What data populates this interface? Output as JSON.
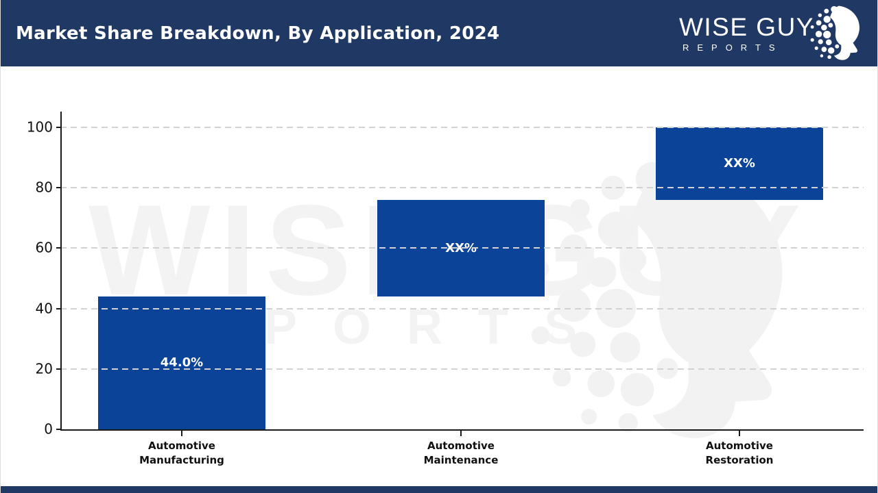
{
  "header": {
    "title": "Market Share Breakdown, By Application, 2024",
    "logo": {
      "brand_line1": "WISE GUY",
      "brand_line2": "REPORTS"
    }
  },
  "watermark": {
    "text_line1": "WISE GUY",
    "text_line2": "REPORTS"
  },
  "chart_data": {
    "type": "bar",
    "subtype": "stepped-cumulative-segments",
    "title": "Market Share Breakdown, By Application, 2024",
    "categories": [
      "Automotive\nManufacturing",
      "Automotive\nMaintenance",
      "Automotive\nRestoration"
    ],
    "starts": [
      0,
      44,
      76
    ],
    "values": [
      44,
      32,
      24
    ],
    "bar_labels": [
      "44.0%",
      "XX%",
      "XX%"
    ],
    "yticks": [
      0,
      20,
      40,
      60,
      80,
      100
    ],
    "ylim": [
      0,
      100
    ],
    "grid": "dashed-horizontal",
    "legend": "none",
    "bar_color": "#0a4398",
    "bar_label_color": "#ffffff"
  },
  "colors": {
    "header_bg": "#203864",
    "accent_blue": "#0a4398",
    "gridline": "#d2d2d2",
    "axis": "#1a1a1a",
    "watermark": "#f3f3f3"
  }
}
